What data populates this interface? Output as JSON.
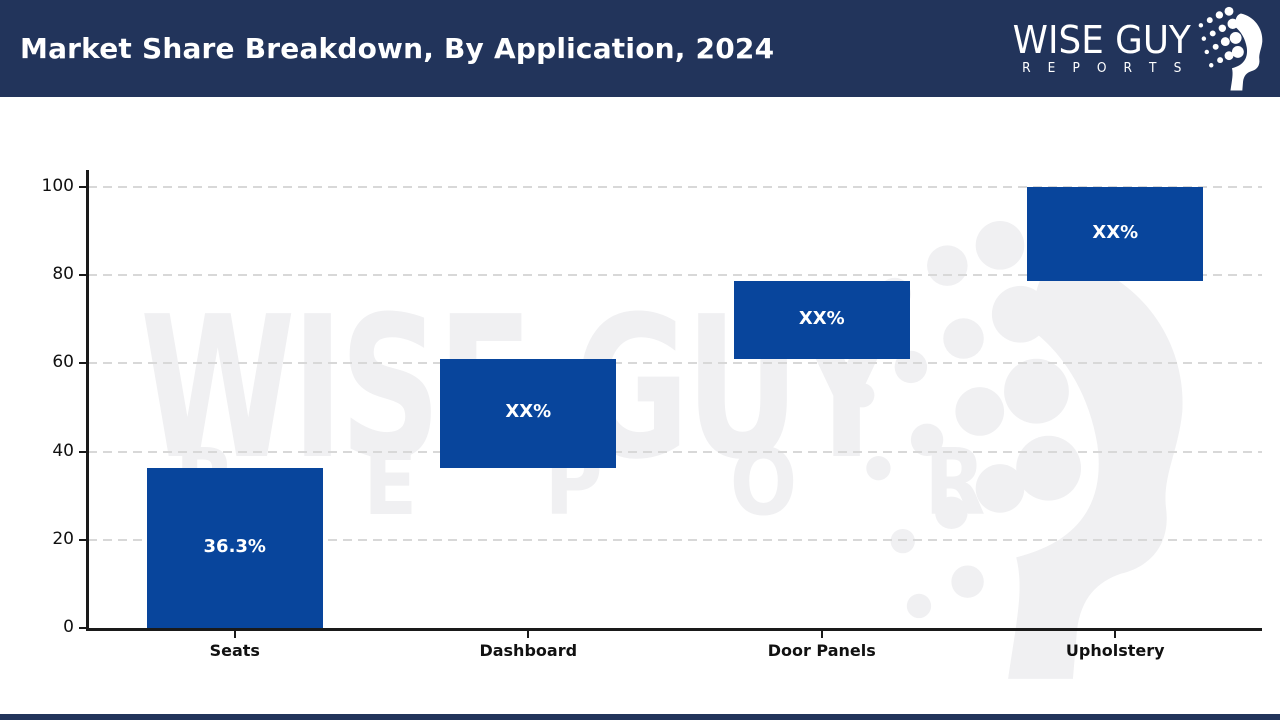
{
  "header": {
    "title": "Market Share Breakdown, By Application, 2024",
    "logo": {
      "line1": "WISE GUY",
      "line2": "R E P O R T S"
    }
  },
  "watermark": {
    "line1": "WISE GUY",
    "line2": "R E P O R T S"
  },
  "colors": {
    "header_bg": "#22345b",
    "bar": "#08459c",
    "bar_label": "#ffffff",
    "grid": "#d8d8d8",
    "axis": "#1a1a1a",
    "watermark": "#f0f0f2"
  },
  "chart_data": {
    "type": "bar",
    "subtype": "floating-waterfall",
    "title": "Market Share Breakdown, By Application, 2024",
    "categories": [
      "Seats",
      "Dashboard",
      "Door Panels",
      "Upholstery"
    ],
    "segments": [
      {
        "category": "Seats",
        "start": 0,
        "end": 36.3,
        "label": "36.3%"
      },
      {
        "category": "Dashboard",
        "start": 36.3,
        "end": 61.0,
        "label": "XX%"
      },
      {
        "category": "Door Panels",
        "start": 61.0,
        "end": 78.7,
        "label": "XX%"
      },
      {
        "category": "Upholstery",
        "start": 78.7,
        "end": 100,
        "label": "XX%"
      }
    ],
    "yticks": [
      0,
      20,
      40,
      60,
      80,
      100
    ],
    "ylim": [
      0,
      105
    ],
    "xlabel": "",
    "ylabel": "",
    "grid": "dashed-horizontal",
    "legend": "none"
  }
}
